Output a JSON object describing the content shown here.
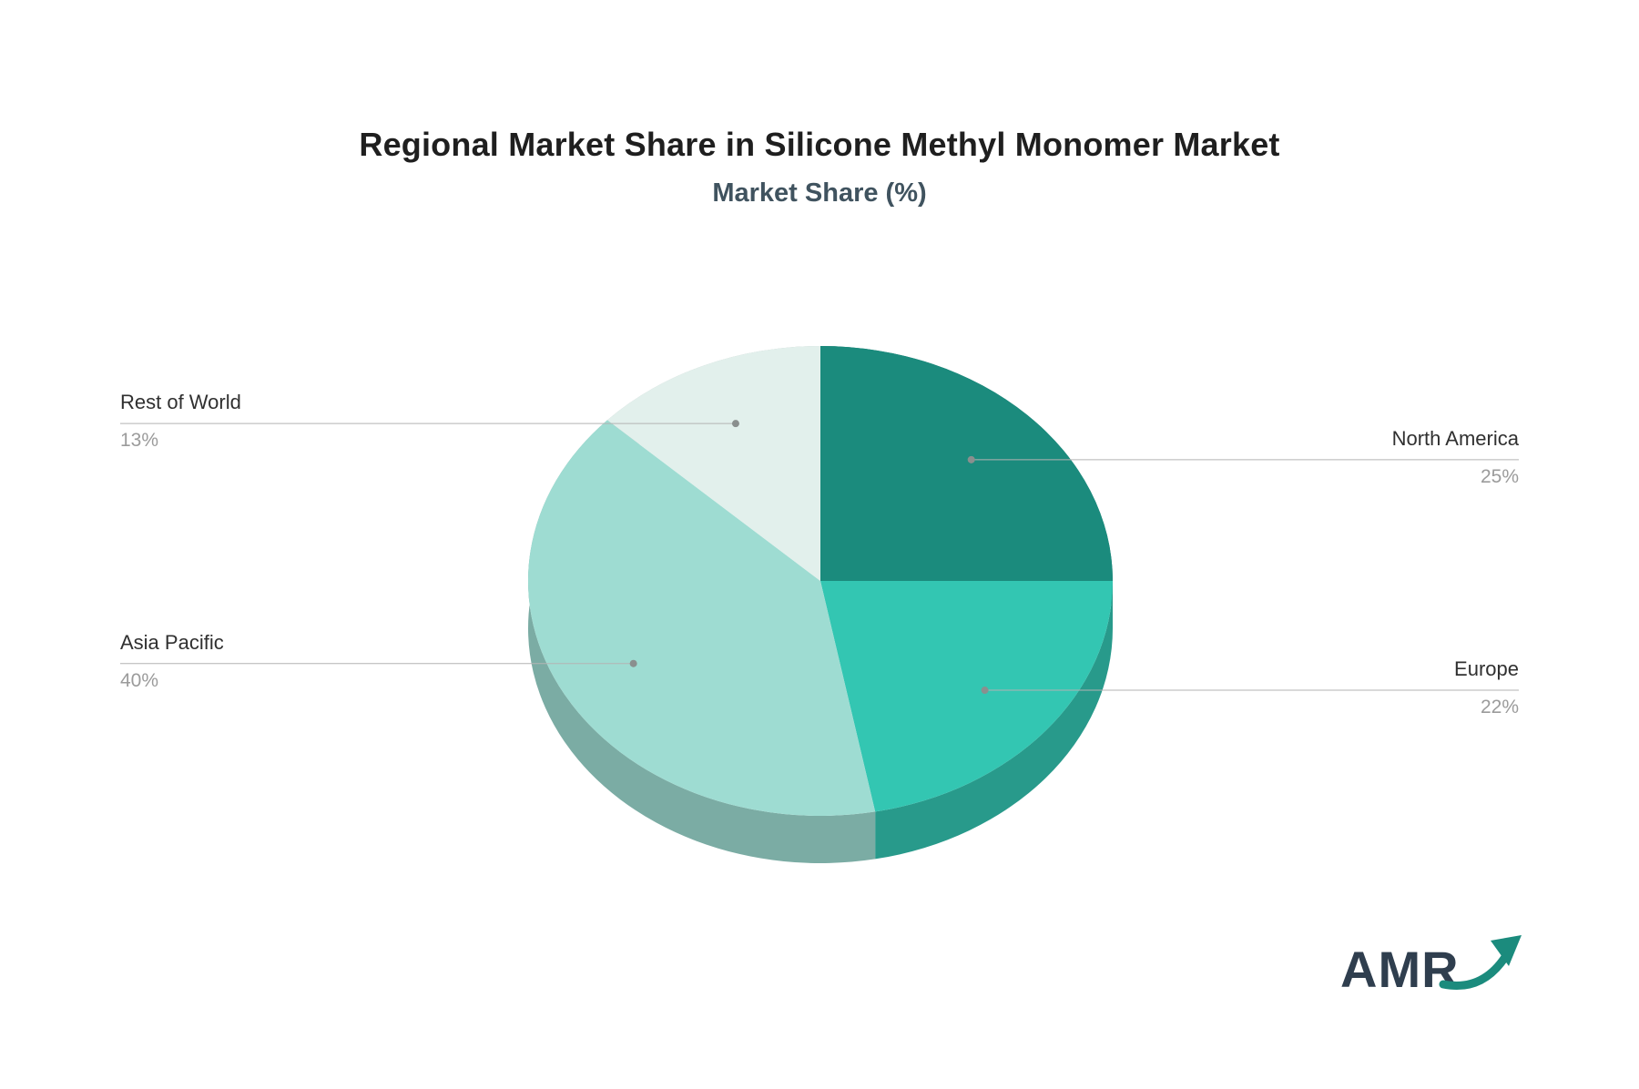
{
  "header": {
    "title": "Regional Market Share in Silicone Methyl Monomer Market",
    "subtitle": "Market Share (%)"
  },
  "chart_data": {
    "type": "pie",
    "style": "3d",
    "title": "Regional Market Share in Silicone Methyl Monomer Market",
    "subtitle": "Market Share (%)",
    "unit": "%",
    "start_angle_deg": 0,
    "direction": "clockwise",
    "legend": "none",
    "slices": [
      {
        "label": "North America",
        "value": 25,
        "pct_label": "25%",
        "color": "#1b8b7d",
        "label_side": "right"
      },
      {
        "label": "Europe",
        "value": 22,
        "pct_label": "22%",
        "color": "#33c6b2",
        "label_side": "right"
      },
      {
        "label": "Asia Pacific",
        "value": 40,
        "pct_label": "40%",
        "color": "#9edcd2",
        "label_side": "left"
      },
      {
        "label": "Rest of World",
        "value": 13,
        "pct_label": "13%",
        "color": "#e2f0ec",
        "label_side": "left"
      }
    ],
    "leader_line_color": "#b3b3b3",
    "leader_dot_color": "#8a8f8e"
  },
  "branding": {
    "logo_text": "AMR",
    "logo_color": "#2f3e4e",
    "arrow_color": "#1b8b7d"
  }
}
